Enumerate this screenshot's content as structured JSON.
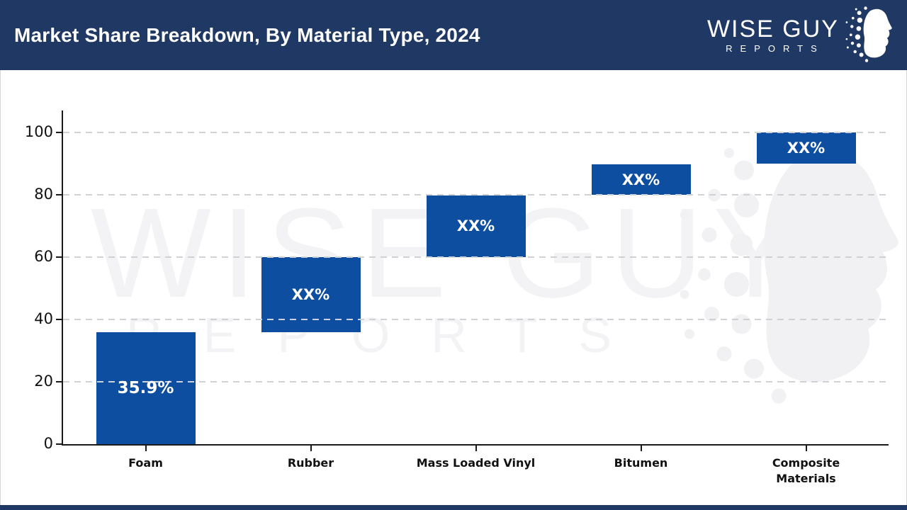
{
  "header": {
    "title": "Market Share Breakdown, By Material Type, 2024",
    "background_color": "#203864",
    "logo": {
      "line1": "WISE GUY",
      "line2": "REPORTS"
    }
  },
  "watermark": {
    "line1": "WISE GUY",
    "line2": "REPORTS"
  },
  "footer": {
    "bar_color": "#203864"
  },
  "colors": {
    "bar_blue": "#0d4ea1",
    "header_navy": "#203864",
    "gridline_gray": "#cfd2d5",
    "axis_black": "#1a1a1a",
    "watermark_gray": "#f3f3f6",
    "value_label_white": "#ffffff"
  },
  "chart_data": {
    "type": "bar",
    "subtype": "waterfall",
    "title": "Market Share Breakdown, By Material Type, 2024",
    "categories": [
      "Foam",
      "Rubber",
      "Mass Loaded Vinyl",
      "Bitumen",
      "Composite Materials"
    ],
    "x_labels": [
      "Foam",
      "Rubber",
      "Mass Loaded Vinyl",
      "Bitumen",
      "Composite\nMaterials"
    ],
    "segments": [
      {
        "category": "Foam",
        "start": 0,
        "end": 35.9,
        "label": "35.9%"
      },
      {
        "category": "Rubber",
        "start": 35.9,
        "end": 60.0,
        "label": "XX%"
      },
      {
        "category": "Mass Loaded Vinyl",
        "start": 60.0,
        "end": 79.8,
        "label": "XX%"
      },
      {
        "category": "Bitumen",
        "start": 79.9,
        "end": 89.7,
        "label": "XX%"
      },
      {
        "category": "Composite Materials",
        "start": 89.9,
        "end": 100.0,
        "label": "XX%"
      }
    ],
    "y_ticks": [
      0,
      20,
      40,
      60,
      80,
      100
    ],
    "ylim": [
      0,
      107
    ],
    "xlabel": "",
    "ylabel": "",
    "legend": "none",
    "grid": "horizontal-dashed",
    "bar_color": "#0d4ea1",
    "unit": "percent"
  }
}
